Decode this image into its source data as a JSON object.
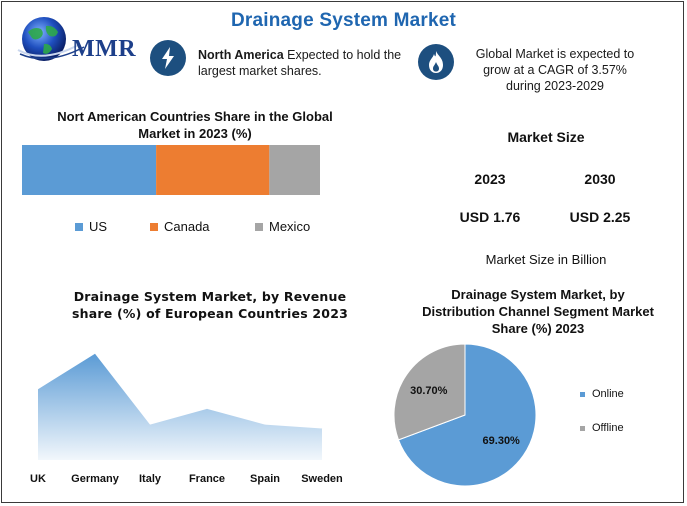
{
  "header": {
    "title": "Drainage System Market",
    "logo_text": "MMR"
  },
  "highlights": [
    {
      "icon": "lightning-icon",
      "bold": "North America",
      "text": " Expected to hold the largest market shares."
    },
    {
      "icon": "flame-icon",
      "bold": "",
      "text": "Global Market is expected to grow at a CAGR of 3.57% during 2023-2029"
    }
  ],
  "colors": {
    "title_blue": "#1f66b0",
    "us": "#5b9bd5",
    "canada": "#ed7d31",
    "mexico": "#a5a5a5",
    "online": "#5b9bd5",
    "offline": "#a5a5a5",
    "area": "#5b9bd5",
    "badge": "#1d4f7f"
  },
  "market_size": {
    "title": "Market Size",
    "years": [
      "2023",
      "2030"
    ],
    "values": [
      "USD 1.76",
      "USD 2.25"
    ],
    "note": "Market Size in Billion"
  },
  "chart_data": [
    {
      "type": "bar",
      "orientation": "horizontal-stacked",
      "title": "Nort American Countries Share in the Global Market in 2023 (%)",
      "series": [
        {
          "name": "US",
          "values": [
            45
          ]
        },
        {
          "name": "Canada",
          "values": [
            38
          ]
        },
        {
          "name": "Mexico",
          "values": [
            17
          ]
        }
      ],
      "xlim": [
        0,
        100
      ],
      "legend": "bottom",
      "grid": false
    },
    {
      "type": "area",
      "title": "Drainage System Market, by Revenue share (%) of European Countries 2023",
      "categories": [
        "UK",
        "Germany",
        "Italy",
        "France",
        "Spain",
        "Sweden"
      ],
      "values": [
        18,
        27,
        9,
        13,
        9,
        8
      ],
      "ylim": [
        0,
        30
      ],
      "grid": false
    },
    {
      "type": "pie",
      "title": "Drainage System Market, by Distribution Channel Segment Market Share (%) 2023",
      "labels": [
        "Online",
        "Offline"
      ],
      "values": [
        69.3,
        30.7
      ],
      "value_labels": [
        "69.30%",
        "30.70%"
      ],
      "legend": "right"
    }
  ]
}
